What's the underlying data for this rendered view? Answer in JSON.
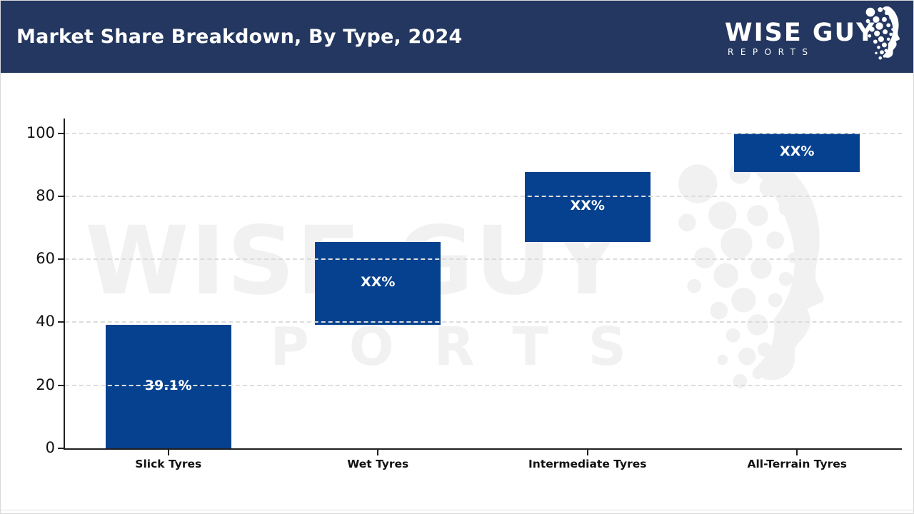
{
  "header": {
    "title": "Market Share Breakdown, By Type, 2024",
    "brand": {
      "line1": "WISE GUY",
      "line2": "REPORTS",
      "face_icon": "dotted-head-profile"
    }
  },
  "watermark": {
    "line1": "WISE GUY",
    "line2": "REPORTS",
    "face_icon": "dotted-head-profile"
  },
  "chart_data": {
    "type": "bar",
    "subtype": "waterfall",
    "title": "Market Share Breakdown, By Type, 2024",
    "categories": [
      "Slick Tyres",
      "Wet Tyres",
      "Intermediate Tyres",
      "All-Terrain Tyres"
    ],
    "segments": [
      {
        "category": "Slick Tyres",
        "label": "39.1%",
        "start": 0,
        "end": 39.1
      },
      {
        "category": "Wet Tyres",
        "label": "XX%",
        "start": 39.1,
        "end": 65.4
      },
      {
        "category": "Intermediate Tyres",
        "label": "XX%",
        "start": 65.4,
        "end": 87.8
      },
      {
        "category": "All-Terrain Tyres",
        "label": "XX%",
        "start": 87.8,
        "end": 100
      }
    ],
    "yticks": [
      0,
      20,
      40,
      60,
      80,
      100
    ],
    "ylim": [
      0,
      104.7
    ],
    "xlabel": "",
    "ylabel": "",
    "grid": "horizontal-dashed-above-bars",
    "legend": false,
    "colors": {
      "bar": "#05418f",
      "bar_label": "#ffffff",
      "grid": "#dcdcdc",
      "axis": "#1f1f1f",
      "tick_label": "#111111",
      "header_bg": "#233760",
      "header_text": "#ffffff",
      "watermark": "#f1f1f1",
      "background": "#ffffff"
    }
  }
}
